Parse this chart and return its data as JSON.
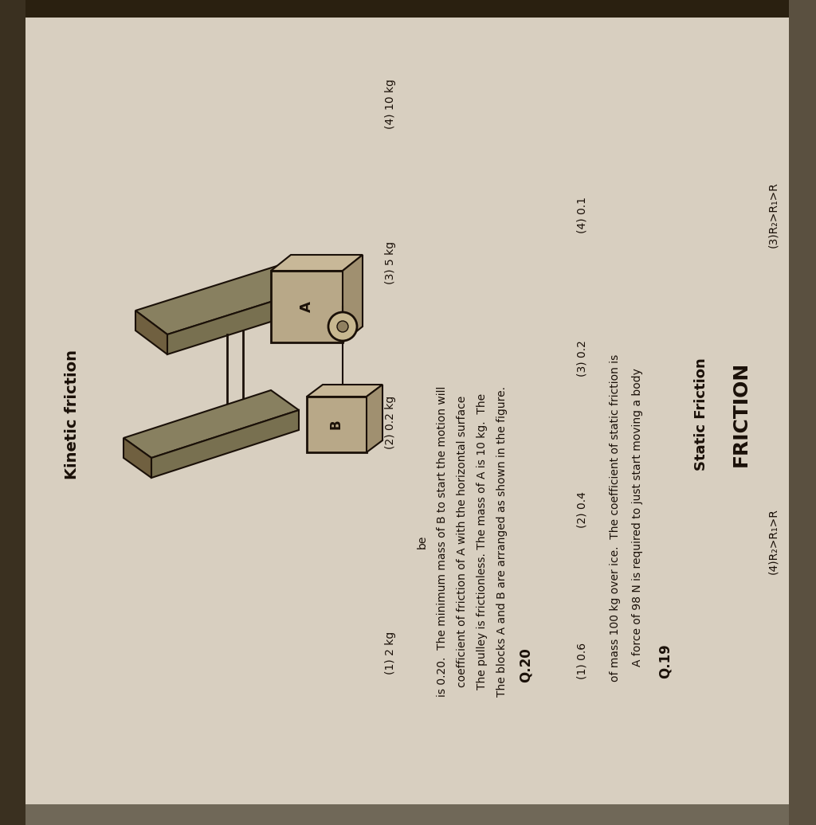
{
  "bg_color": "#706858",
  "paper_color": "#d8cfc0",
  "text_color": "#1a1008",
  "dark_edge": "#1a1008",
  "block_face": "#b8a888",
  "block_top": "#c8b898",
  "block_side": "#a09070",
  "platform_face": "#908060",
  "platform_top": "#b8a878",
  "title": "FRICTION",
  "subtitle": "Static Friction",
  "q19_label": "Q.19",
  "q19_line1": "A force of 98 N is required to just start moving a body",
  "q19_line2": "of mass 100 kg over ice.  The coefficient of static friction is",
  "q19_opts": [
    "(1) 0.6",
    "(2) 0.4",
    "(3) 0.2",
    "(4) 0.1"
  ],
  "q20_label": "Q.20",
  "q20_line1": "The blocks A and B are arranged as shown in the figure.",
  "q20_line2": "The pulley is frictionless. The mass of A is 10 kg.  The",
  "q20_line3": "coefficient of friction of A with the horizontal surface",
  "q20_line4": "is 0.20.  The minimum mass of B to start the motion will",
  "q20_line5": "be",
  "q20_opts": [
    "(1) 2 kg",
    "(2) 0.2 kg",
    "(3) 5 kg",
    "(4) 10 kg"
  ],
  "kinetic_title": "Kinetic friction",
  "top_left": "(3)R₂>R₁>R",
  "top_right": "(4)R₂>R₁>R"
}
